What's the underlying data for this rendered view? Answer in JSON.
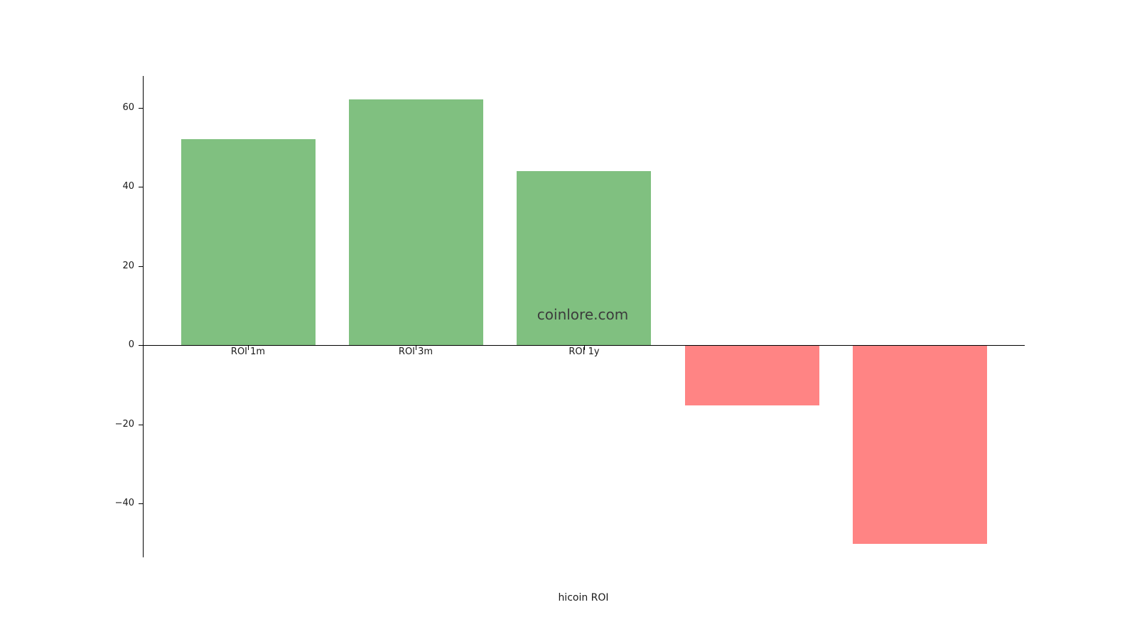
{
  "watermark": "coinlore.com",
  "chart_data": {
    "type": "bar",
    "title": "",
    "xlabel": "hicoin ROI",
    "ylabel": "",
    "categories": [
      "ROI 1m",
      "ROI 3m",
      "ROI 1y",
      "",
      ""
    ],
    "values": [
      52,
      62,
      44,
      -15,
      -50
    ],
    "bar_colors": [
      "#80c080",
      "#80c080",
      "#80c080",
      "#ff8484",
      "#ff8484"
    ],
    "positive_color": "#80c080",
    "negative_color": "#ff8484",
    "y_ticks": [
      60,
      40,
      20,
      0,
      -20,
      -40
    ],
    "ylim": [
      -53.5,
      68
    ],
    "xlim": [
      -0.625,
      4.625
    ],
    "bar_width_units": 0.8,
    "grid": false,
    "legend": null,
    "hidden_tick_labels_under_negative_bars": true
  }
}
